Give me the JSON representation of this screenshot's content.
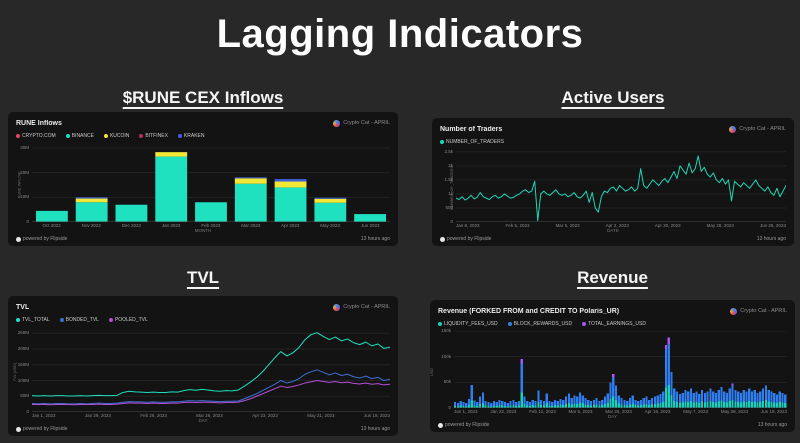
{
  "page": {
    "title": "Lagging Indicators"
  },
  "sections": [
    {
      "heading": "$RUNE CEX Inflows"
    },
    {
      "heading": "Active Users"
    },
    {
      "heading": "TVL"
    },
    {
      "heading": "Revenue"
    }
  ],
  "watermark": {
    "brand": "Crypto Cat - APRIL",
    "powered_by": "powered by Flipside",
    "updated": "13 hours ago"
  },
  "chart_data": [
    {
      "id": "rune-inflows",
      "type": "bar",
      "title": "RUNE Inflows",
      "legend": [
        {
          "label": "CRYPTO.COM",
          "color": "#e8436a"
        },
        {
          "label": "BINANCE",
          "color": "#1fe0bf"
        },
        {
          "label": "KUCOIN",
          "color": "#f2e735"
        },
        {
          "label": "BITFINEX",
          "color": "#b0314f"
        },
        {
          "label": "KRAKEN",
          "color": "#3d5fd6"
        }
      ],
      "categories": [
        "Oct 2022",
        "Nov 2022",
        "Dec 2022",
        "Jan 2023",
        "Feb 2023",
        "Mar 2023",
        "Apr 2023",
        "May 2023",
        "Jun 2023"
      ],
      "series": [
        {
          "name": "BINANCE",
          "color": "#1fe0bf",
          "values": [
            4.5,
            8,
            7,
            26.5,
            8,
            15.5,
            14,
            7.8,
            3.2
          ]
        },
        {
          "name": "KUCOIN",
          "color": "#f2e735",
          "values": [
            0,
            1.5,
            0,
            1.8,
            0,
            2.2,
            2.4,
            1.6,
            0
          ]
        },
        {
          "name": "KRAKEN",
          "color": "#3d5fd6",
          "values": [
            0,
            0.5,
            0,
            0,
            0,
            0.4,
            1.0,
            0.4,
            0
          ]
        }
      ],
      "yticks": [
        {
          "label": "30M",
          "value": 30
        },
        {
          "label": "20M",
          "value": 20
        },
        {
          "label": "10M",
          "value": 10
        },
        {
          "label": "0",
          "value": 0
        }
      ],
      "ymax": 32,
      "xlabel": "MONTH",
      "ylabel": "RUNE INFLOW"
    },
    {
      "id": "number-of-traders",
      "type": "line",
      "title": "Number of Traders",
      "legend": [
        {
          "label": "NUMBER_OF_TRADERS",
          "color": "#1fd6b5"
        }
      ],
      "xticks": [
        "Jan 8, 2023",
        "Feb 5, 2023",
        "Mar 5, 2023",
        "Apr 2, 2023",
        "Apr 30, 2023",
        "May 28, 2023",
        "Jun 25, 2023"
      ],
      "series": [
        {
          "name": "NUMBER_OF_TRADERS",
          "color": "#1fd6b5",
          "values": [
            0.85,
            0.8,
            0.9,
            0.78,
            0.85,
            0.95,
            0.82,
            0.88,
            1.05,
            0.9,
            0.85,
            0.8,
            0.9,
            0.95,
            0.85,
            0.9,
            1.0,
            0.92,
            0.85,
            0.88,
            0.95,
            1.0,
            1.1,
            1.15,
            1.05,
            1.1,
            1.45,
            0.05,
            1.0,
            1.1,
            1.0,
            0.95,
            1.05,
            1.15,
            1.0,
            0.95,
            1.0,
            0.9,
            0.95,
            1.05,
            0.9,
            0.85,
            0.95,
            1.1,
            0.7,
            1.05,
            0.5,
            0.35,
            0.9,
            1.1,
            1.05,
            1.2,
            1.25,
            1.1,
            1.3,
            1.2,
            1.1,
            1.15,
            1.25,
            1.1,
            1.2,
            1.9,
            1.3,
            1.2,
            1.35,
            1.5,
            1.4,
            1.3,
            1.45,
            1.55,
            1.4,
            1.6,
            1.8,
            1.55,
            2.0,
            1.85,
            1.7,
            2.1,
            1.75,
            1.9,
            2.35,
            1.8,
            1.95,
            1.7,
            1.6,
            1.75,
            1.5,
            1.4,
            1.55,
            1.35,
            1.5,
            0.75,
            1.45,
            1.35,
            1.25,
            1.4,
            1.3,
            1.2,
            1.35,
            1.5,
            1.3,
            1.2,
            1.1,
            1.25,
            1.05,
            0.95,
            1.2,
            0.9,
            1.1,
            1.3
          ]
        }
      ],
      "yticks": [
        {
          "label": "2.5k",
          "value": 2.5
        },
        {
          "label": "2k",
          "value": 2
        },
        {
          "label": "1.5k",
          "value": 1.5
        },
        {
          "label": "1k",
          "value": 1
        },
        {
          "label": "500",
          "value": 0.5
        },
        {
          "label": "0",
          "value": 0
        }
      ],
      "ymax": 2.6,
      "xlabel": "DATE",
      "ylabel": "NUMBER_OF_TRADERS"
    },
    {
      "id": "tvl",
      "type": "line",
      "title": "TVL",
      "legend": [
        {
          "label": "TVL_TOTAL",
          "color": "#1fe0bf"
        },
        {
          "label": "BONDED_TVL",
          "color": "#3c6fd1"
        },
        {
          "label": "POOLED_TVL",
          "color": "#b64fd8"
        }
      ],
      "xticks": [
        "Jan 1, 2023",
        "Jan 29, 2023",
        "Feb 26, 2023",
        "Mar 26, 2023",
        "Apr 23, 2023",
        "May 21, 2023",
        "Jun 18, 2023"
      ],
      "series": [
        {
          "name": "TVL_TOTAL",
          "color": "#1fe0bf",
          "values": [
            52,
            51,
            52,
            51,
            52,
            52,
            51,
            51,
            52,
            51,
            52,
            53,
            52,
            52,
            53,
            62,
            66,
            64,
            63,
            62,
            63,
            62,
            62,
            64,
            63,
            68,
            71,
            69,
            72,
            70,
            67,
            66,
            68,
            67,
            70,
            82,
            95,
            110,
            128,
            150,
            172,
            192,
            178,
            188,
            205,
            230,
            246,
            252,
            240,
            230,
            238,
            226,
            232,
            220,
            214,
            222,
            210,
            216,
            202,
            206
          ]
        },
        {
          "name": "BONDED_TVL",
          "color": "#3c6fd1",
          "values": [
            27,
            26,
            27,
            26,
            27,
            27,
            26,
            26,
            27,
            26,
            27,
            28,
            27,
            27,
            28,
            31,
            33,
            32,
            32,
            31,
            32,
            31,
            31,
            32,
            32,
            34,
            36,
            35,
            36,
            35,
            34,
            33,
            34,
            34,
            35,
            42,
            50,
            58,
            68,
            78,
            88,
            100,
            92,
            97,
            106,
            120,
            128,
            134,
            126,
            118,
            124,
            116,
            120,
            112,
            108,
            114,
            106,
            110,
            100,
            104
          ]
        },
        {
          "name": "POOLED_TVL",
          "color": "#b64fd8",
          "values": [
            24,
            24,
            24,
            23,
            24,
            24,
            24,
            23,
            24,
            24,
            24,
            25,
            24,
            24,
            25,
            27,
            29,
            28,
            28,
            27,
            28,
            27,
            27,
            28,
            28,
            30,
            31,
            30,
            31,
            31,
            30,
            29,
            30,
            30,
            31,
            36,
            42,
            50,
            58,
            66,
            74,
            82,
            78,
            81,
            86,
            92,
            96,
            100,
            97,
            94,
            97,
            93,
            95,
            91,
            89,
            92,
            88,
            90,
            86,
            88
          ]
        }
      ],
      "yticks": [
        {
          "label": "250M",
          "value": 250
        },
        {
          "label": "200M",
          "value": 200
        },
        {
          "label": "150M",
          "value": 150
        },
        {
          "label": "100M",
          "value": 100
        },
        {
          "label": "50M",
          "value": 50
        },
        {
          "label": "0",
          "value": 0
        }
      ],
      "ymax": 270,
      "xlabel": "DAY",
      "ylabel": "TVL (USD)"
    },
    {
      "id": "revenue",
      "type": "stacked-bar",
      "title": "Revenue (FORKED FROM and CREDIT TO Polaris_UR)",
      "legend": [
        {
          "label": "LIQUIDITY_FEES_USD",
          "color": "#18cfc0"
        },
        {
          "label": "BLOCK_REWARDS_USD",
          "color": "#2f7ef0"
        },
        {
          "label": "TOTAL_EARNINGS_USD",
          "color": "#a855f7"
        }
      ],
      "xticks": [
        "Jan 1, 2023",
        "Jan 22, 2023",
        "Feb 12, 2023",
        "Mar 5, 2023",
        "Mar 26, 2023",
        "Apr 16, 2023",
        "May 7, 2023",
        "May 28, 2023",
        "Jun 18, 2023"
      ],
      "series": [
        {
          "name": "LIQUIDITY_FEES_USD",
          "color": "#18cfc0",
          "values": [
            4,
            3,
            5,
            4,
            3,
            6,
            15,
            5,
            4,
            8,
            10,
            5,
            4,
            3,
            5,
            4,
            6,
            5,
            4,
            3,
            5,
            6,
            4,
            5,
            30,
            8,
            5,
            4,
            6,
            5,
            12,
            6,
            5,
            10,
            5,
            4,
            6,
            5,
            7,
            6,
            8,
            10,
            7,
            9,
            8,
            11,
            9,
            7,
            6,
            5,
            6,
            7,
            5,
            6,
            8,
            10,
            18,
            22,
            16,
            9,
            7,
            6,
            5,
            7,
            9,
            6,
            5,
            6,
            7,
            8,
            6,
            7,
            8,
            9,
            10,
            12,
            40,
            45,
            25,
            14,
            12,
            10,
            11,
            13,
            12,
            14,
            11,
            12,
            10,
            13,
            11,
            12,
            14,
            12,
            11,
            13,
            15,
            12,
            11,
            14,
            16,
            13,
            12,
            11,
            13,
            12,
            14,
            12,
            13,
            11,
            12,
            14,
            16,
            13,
            12,
            11,
            10,
            12,
            11,
            10
          ]
        },
        {
          "name": "BLOCK_REWARDS_USD",
          "color": "#2f7ef0",
          "values": [
            8,
            7,
            9,
            8,
            7,
            12,
            30,
            10,
            8,
            14,
            20,
            9,
            8,
            7,
            9,
            8,
            10,
            9,
            8,
            7,
            9,
            10,
            8,
            9,
            57,
            14,
            9,
            8,
            10,
            9,
            22,
            10,
            9,
            18,
            9,
            8,
            10,
            9,
            11,
            10,
            14,
            18,
            12,
            15,
            14,
            19,
            15,
            12,
            10,
            9,
            10,
            12,
            9,
            10,
            14,
            18,
            32,
            38,
            28,
            15,
            12,
            10,
            9,
            12,
            15,
            10,
            9,
            10,
            12,
            14,
            10,
            12,
            14,
            15,
            17,
            20,
            75,
            80,
            45,
            24,
            20,
            17,
            18,
            22,
            20,
            24,
            18,
            20,
            17,
            22,
            18,
            20,
            24,
            20,
            18,
            22,
            26,
            20,
            18,
            24,
            28,
            22,
            20,
            18,
            22,
            20,
            24,
            20,
            22,
            18,
            20,
            24,
            28,
            22,
            20,
            18,
            16,
            20,
            18,
            16
          ]
        },
        {
          "name": "TOTAL_EARNINGS_USD",
          "color": "#a855f7",
          "spikes": {
            "24": 8,
            "57": 6,
            "76": 8,
            "77": 12,
            "100": 4
          }
        }
      ],
      "yticks": [
        {
          "label": "150k",
          "value": 150
        },
        {
          "label": "100k",
          "value": 100
        },
        {
          "label": "50k",
          "value": 50
        },
        {
          "label": "0",
          "value": 0
        }
      ],
      "ymax": 150,
      "xlabel": "DAY",
      "ylabel": "USD"
    }
  ]
}
